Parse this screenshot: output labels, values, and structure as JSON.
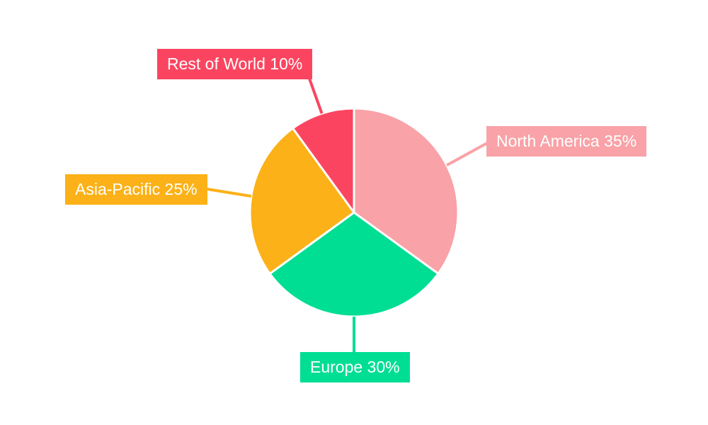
{
  "chart_data": {
    "type": "pie",
    "title": "",
    "start_angle_deg": 0,
    "direction": "clockwise",
    "legend_position": "none",
    "background_color": "#FFFFFF",
    "slice_border_color": "#FFFFFF",
    "label_text_color": "#FFFFFF",
    "slices": [
      {
        "label": "North America",
        "value": 35,
        "display": "North America 35%",
        "color": "#F9A2A7"
      },
      {
        "label": "Europe",
        "value": 30,
        "display": "Europe 30%",
        "color": "#00DE94"
      },
      {
        "label": "Asia-Pacific",
        "value": 25,
        "display": "Asia-Pacific 25%",
        "color": "#FBB117"
      },
      {
        "label": "Rest of World",
        "value": 10,
        "display": "Rest of World 10%",
        "color": "#FB4560"
      }
    ]
  }
}
